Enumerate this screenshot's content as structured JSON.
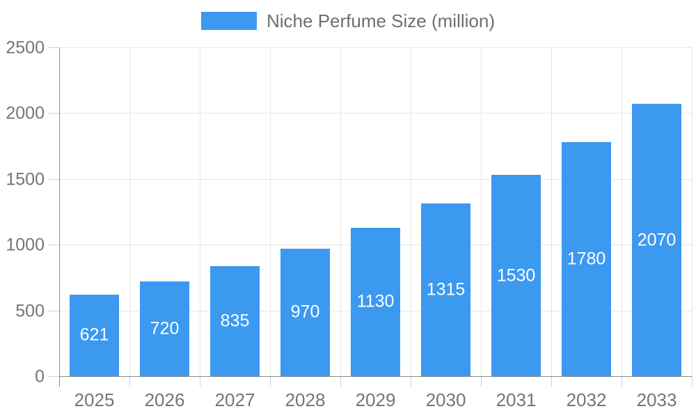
{
  "legend": {
    "label": "Niche Perfume Size (million)",
    "swatch": "blue-rect"
  },
  "chart_data": {
    "type": "bar",
    "title": "Niche Perfume Size (million)",
    "series_name": "Niche Perfume Size (million)",
    "categories": [
      "2025",
      "2026",
      "2027",
      "2028",
      "2029",
      "2030",
      "2031",
      "2032",
      "2033"
    ],
    "values": [
      621,
      720,
      835,
      970,
      1130,
      1315,
      1530,
      1780,
      2070
    ],
    "xlabel": "",
    "ylabel": "",
    "ylim": [
      0,
      2500
    ],
    "yticks": [
      0,
      500,
      1000,
      1500,
      2000,
      2500
    ],
    "grid": true,
    "legend_position": "top-center",
    "bar_color": "#3B99F0",
    "value_label_color": "#FFFFFF",
    "axis_label_color": "#757575",
    "gridline_color": "#E6E6E6",
    "axis_line_color": "#8A8A8A"
  }
}
